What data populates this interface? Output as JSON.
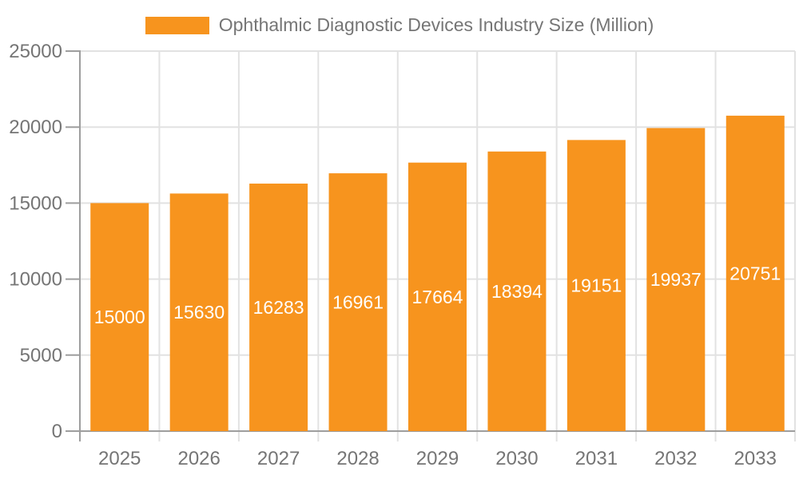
{
  "chart_data": {
    "type": "bar",
    "title": "Ophthalmic Diagnostic Devices Industry Size (Million)",
    "legend_position": "top",
    "categories": [
      "2025",
      "2026",
      "2027",
      "2028",
      "2029",
      "2030",
      "2031",
      "2032",
      "2033"
    ],
    "series": [
      {
        "name": "Ophthalmic Diagnostic Devices Industry Size (Million)",
        "values": [
          15000,
          15630,
          16283,
          16961,
          17664,
          18394,
          19151,
          19937,
          20751
        ]
      }
    ],
    "xlabel": "",
    "ylabel": "",
    "ylim": [
      0,
      25000
    ],
    "yticks": [
      0,
      5000,
      10000,
      15000,
      20000,
      25000
    ],
    "grid": true,
    "bar_labels_visible": true,
    "colors": {
      "bar": "#F7941E",
      "grid": "#E2E2E2",
      "axis": "#9E9E9E",
      "x_tick": "#E2E2E2",
      "text": "#757575",
      "bar_label": "#FFFFFF"
    }
  }
}
